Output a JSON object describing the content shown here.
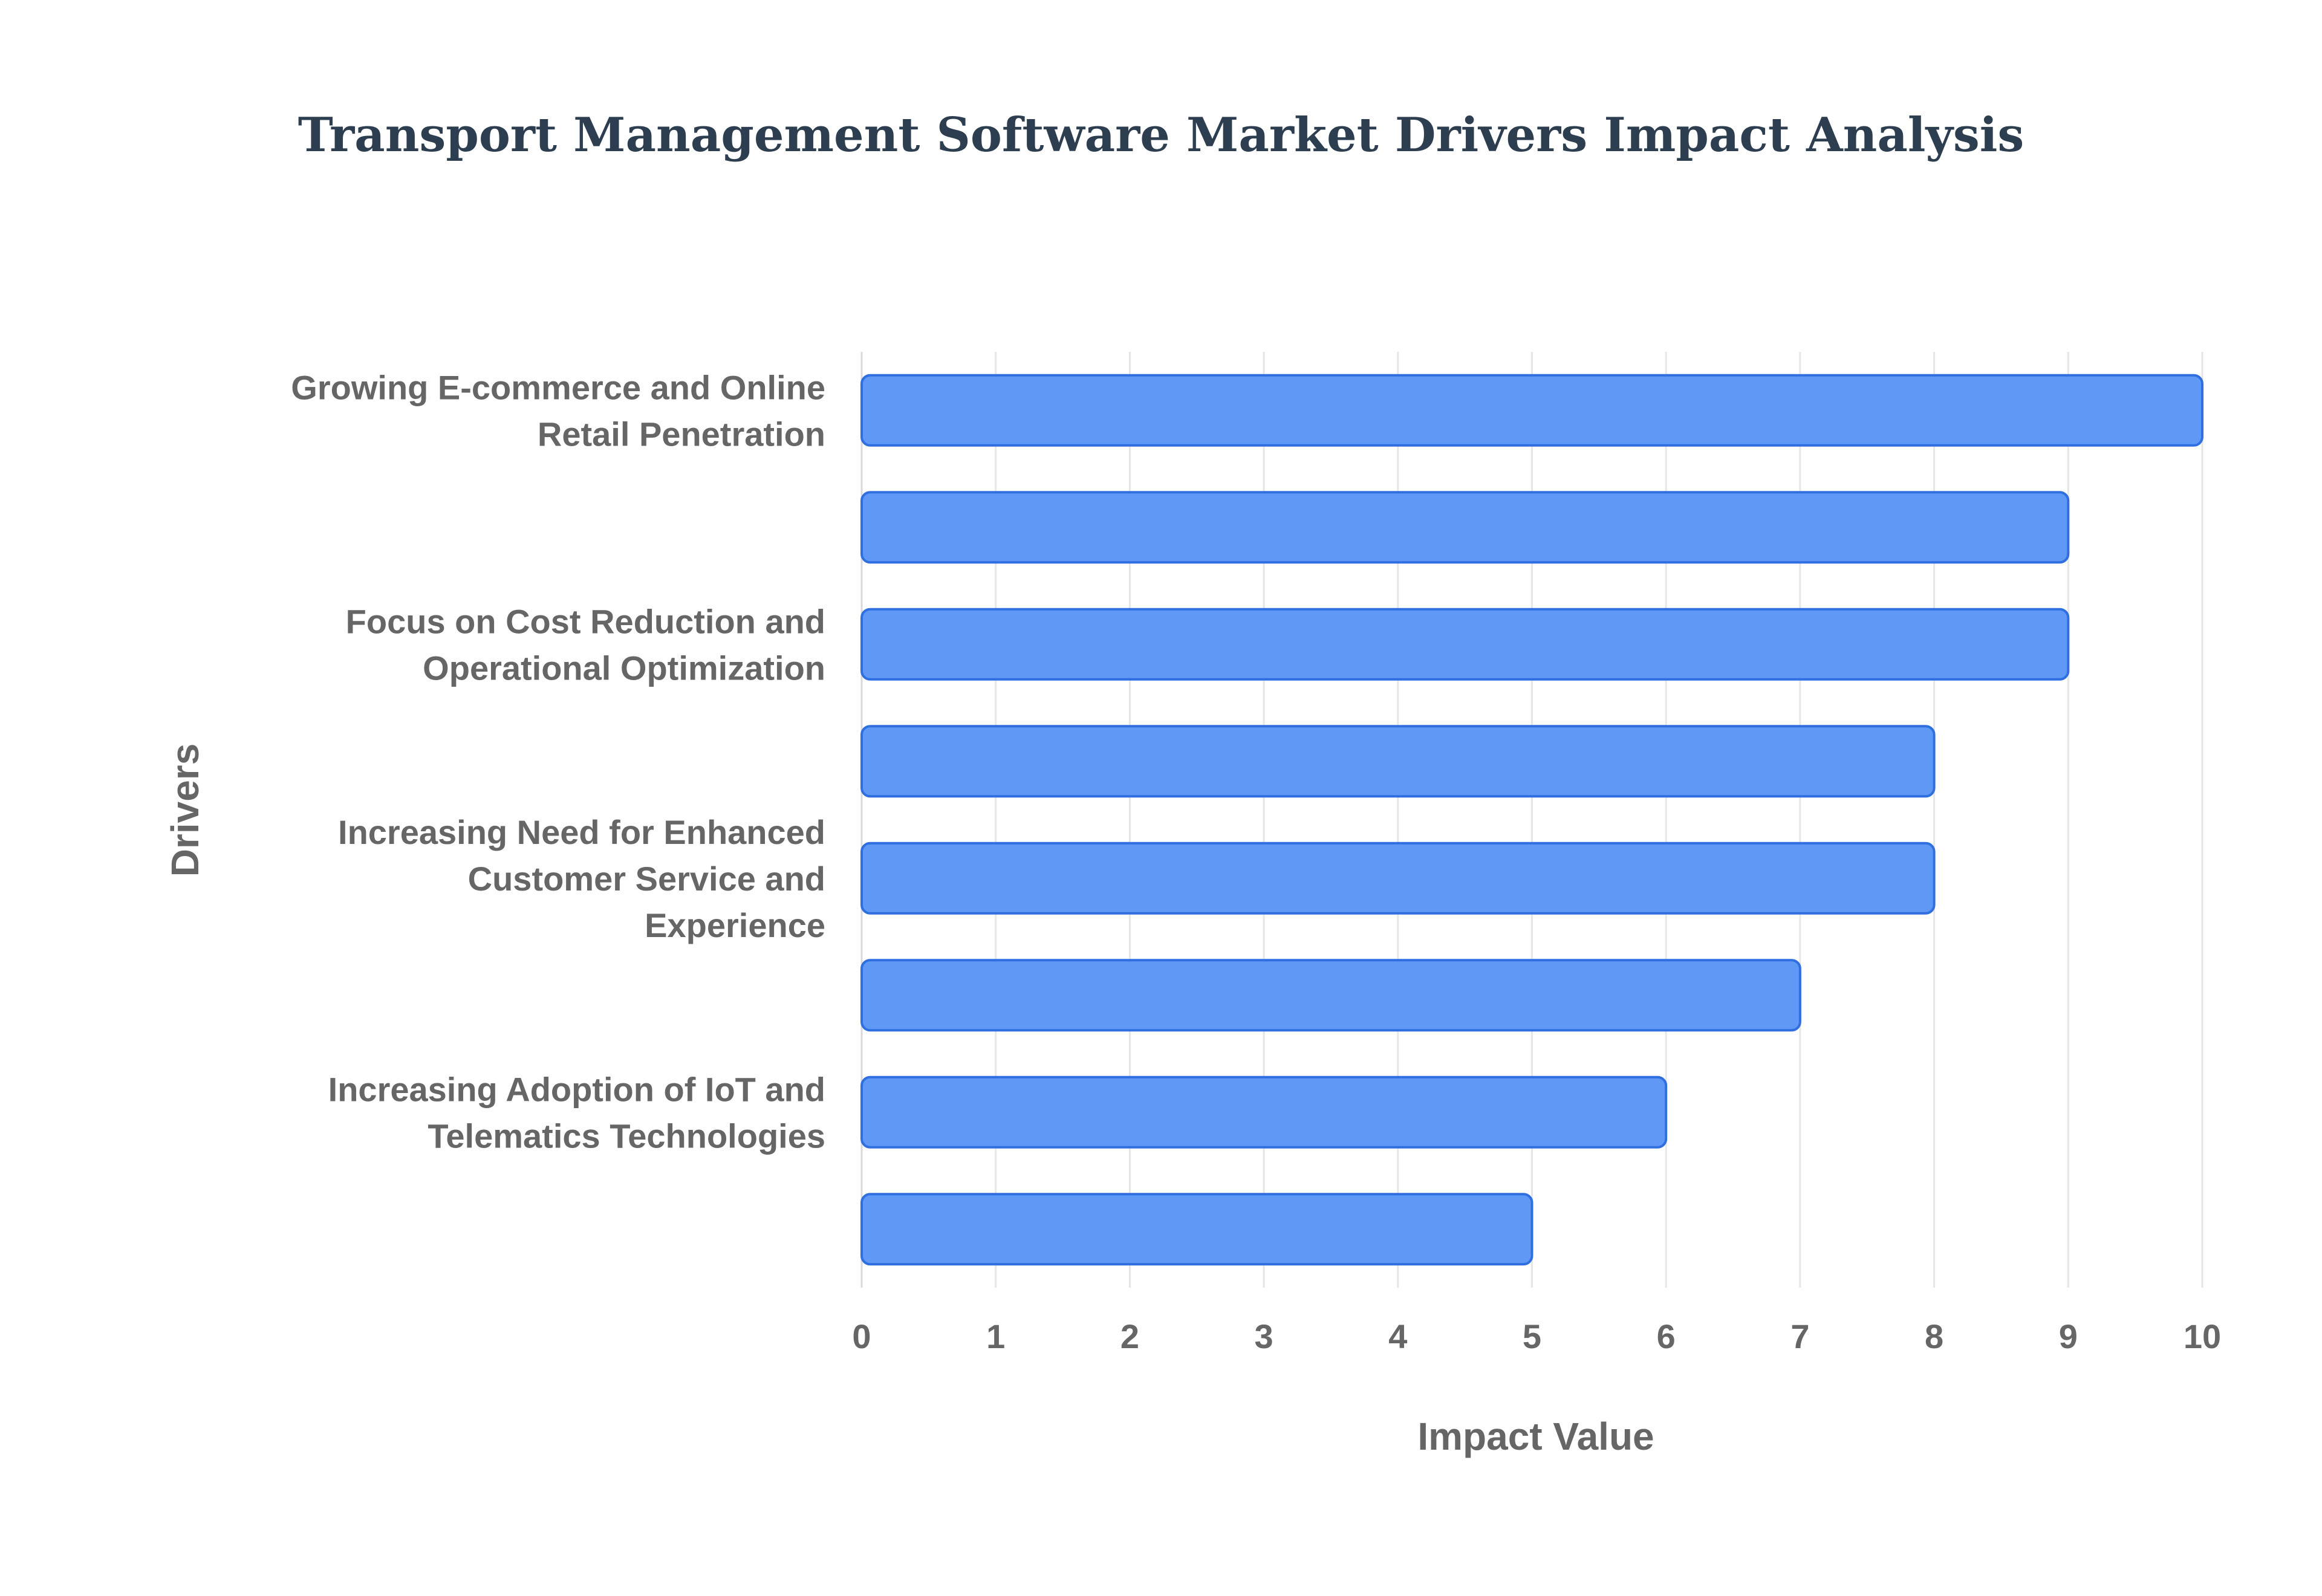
{
  "chart_data": {
    "type": "bar",
    "orientation": "horizontal",
    "title": "Transport Management Software Market Drivers Impact Analysis",
    "xlabel": "Impact Value",
    "ylabel": "Drivers",
    "xlim": [
      0,
      10
    ],
    "x_ticks": [
      "0",
      "1",
      "2",
      "3",
      "4",
      "5",
      "6",
      "7",
      "8",
      "9",
      "10"
    ],
    "categories": [
      [
        "Growing E-commerce and Online",
        "Retail Penetration"
      ],
      [],
      [
        "Focus on Cost Reduction and",
        "Operational Optimization"
      ],
      [],
      [
        "Increasing Need for Enhanced",
        "Customer Service and",
        "Experience"
      ],
      [],
      [
        "Increasing Adoption of IoT and",
        "Telematics Technologies"
      ],
      []
    ],
    "values": [
      10,
      9,
      9,
      8,
      8,
      7,
      6,
      5
    ],
    "bar_color": "#6098f5",
    "bar_edge_color": "#2f6fe0",
    "grid": true,
    "legend": "none"
  }
}
